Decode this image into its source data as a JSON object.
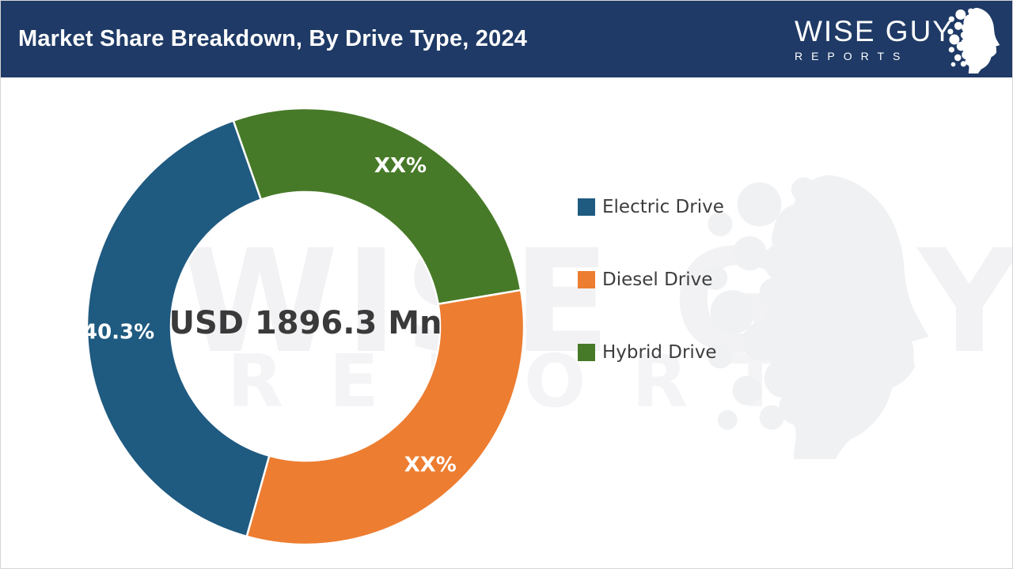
{
  "header": {
    "title": "Market Share Breakdown, By Drive Type, 2024",
    "bg_color": "#1f3a66",
    "logo_line1": "WISE GUY",
    "logo_line2": "REPORTS"
  },
  "watermark": {
    "line1": "WISE GUY",
    "line2": "REPORTS"
  },
  "chart_data": {
    "type": "pie",
    "subtype": "donut",
    "title": "Market Share Breakdown, By Drive Type, 2024",
    "center_label": "USD 1896.3 Mn",
    "start_angle_deg": -19.3,
    "direction": "clockwise",
    "slices": [
      {
        "label": "Hybrid Drive",
        "display": "XX%",
        "pct": 27.7,
        "color": "#477a28"
      },
      {
        "label": "Diesel Drive",
        "display": "XX%",
        "pct": 32.0,
        "color": "#ed7d31"
      },
      {
        "label": "Electric Drive",
        "display": "40.3%",
        "pct": 40.3,
        "color": "#1f5a80"
      }
    ],
    "legend": [
      {
        "label": "Electric Drive",
        "color": "#1f5a80"
      },
      {
        "label": "Diesel Drive",
        "color": "#ed7d31"
      },
      {
        "label": "Hybrid Drive",
        "color": "#477a28"
      }
    ],
    "legend_position": "right"
  }
}
